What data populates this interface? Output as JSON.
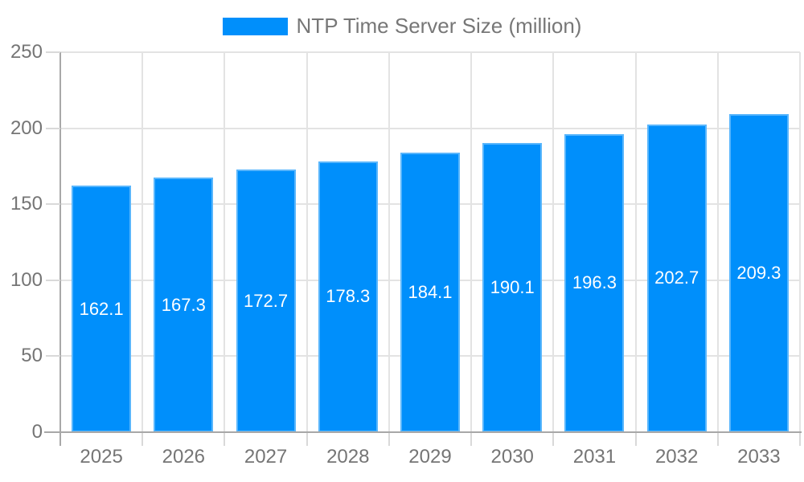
{
  "chart_data": {
    "type": "bar",
    "title": "",
    "series_label": "NTP Time Server Size (million)",
    "categories": [
      "2025",
      "2026",
      "2027",
      "2028",
      "2029",
      "2030",
      "2031",
      "2032",
      "2033"
    ],
    "values": [
      162.1,
      167.3,
      172.7,
      178.3,
      184.1,
      190.1,
      196.3,
      202.7,
      209.3
    ],
    "value_decimals": 1,
    "y_ticks": [
      0,
      50,
      100,
      150,
      200,
      250
    ],
    "ylim": [
      0,
      250
    ],
    "grid": true,
    "legend_position": "top",
    "colors": {
      "bar": "#008FFB",
      "value_label": "#ffffff",
      "grid_line": "#e3e3e3",
      "axis_line": "#a8a8a8",
      "tick": "#d9d9d9",
      "axis_label": "#757575",
      "legend_label": "#777777"
    }
  }
}
